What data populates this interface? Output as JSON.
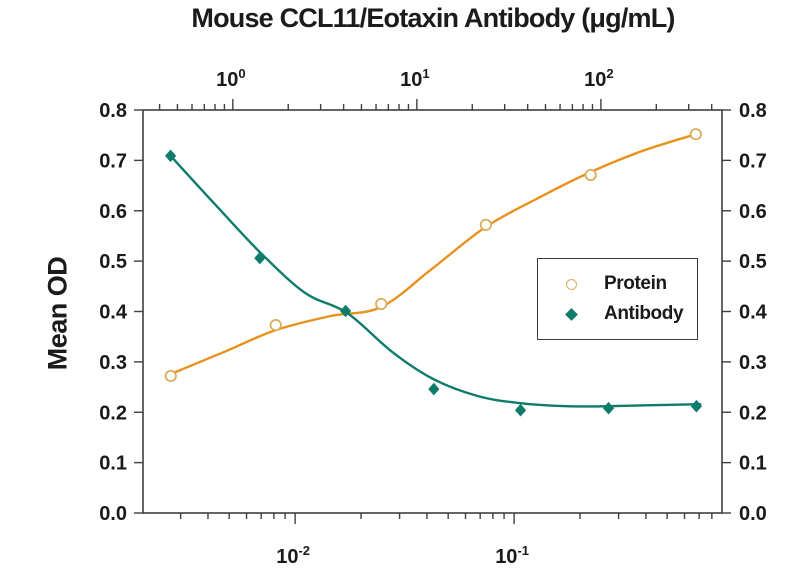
{
  "chart_data": {
    "type": "scatter",
    "title": "Mouse CCL11/Eotaxin Antibody (μg/mL)",
    "grid": false,
    "y_axis": {
      "label": "Mean OD",
      "range": [
        0.0,
        0.8
      ],
      "tick_step": 0.1,
      "tick_labels": [
        "0.0",
        "0.1",
        "0.2",
        "0.3",
        "0.4",
        "0.5",
        "0.6",
        "0.7",
        "0.8"
      ],
      "labels_on_both_sides": true
    },
    "x_axis_top": {
      "scale": "log",
      "range": [
        0.325,
        455
      ],
      "label_base": "10",
      "major_ticks": [
        {
          "value": 1,
          "exponent": "0"
        },
        {
          "value": 10,
          "exponent": "1"
        },
        {
          "value": 100,
          "exponent": "2"
        }
      ]
    },
    "x_axis_bottom": {
      "scale": "log",
      "range": [
        0.00202,
        0.89
      ],
      "label_base": "10",
      "major_ticks": [
        {
          "value": 0.01,
          "exponent": "-2"
        },
        {
          "value": 0.1,
          "exponent": "-1"
        }
      ]
    },
    "series": [
      {
        "name": "Protein",
        "x_axis": "top",
        "marker": "open-circle",
        "marker_color": "#D8AE5A",
        "line_color": "#E8921E",
        "x": [
          0.46,
          1.71,
          6.4,
          23.7,
          88,
          328
        ],
        "y": [
          0.272,
          0.373,
          0.415,
          0.572,
          0.671,
          0.752
        ],
        "curve_x": [
          0.46,
          0.9,
          1.71,
          3.4,
          6.4,
          12.2,
          23.7,
          45.5,
          88,
          169,
          328
        ],
        "curve_y": [
          0.276,
          0.32,
          0.363,
          0.391,
          0.409,
          0.486,
          0.568,
          0.625,
          0.677,
          0.719,
          0.752
        ]
      },
      {
        "name": "Antibody",
        "x_axis": "bottom",
        "marker": "filled-diamond",
        "marker_color": "#0E7C6B",
        "line_color": "#0F7C6B",
        "x": [
          0.0027,
          0.0069,
          0.017,
          0.043,
          0.107,
          0.27,
          0.68
        ],
        "y": [
          0.709,
          0.506,
          0.401,
          0.246,
          0.204,
          0.208,
          0.212
        ],
        "curve_x": [
          0.0027,
          0.0043,
          0.0069,
          0.0111,
          0.0173,
          0.0277,
          0.0427,
          0.0685,
          0.107,
          0.173,
          0.269,
          0.428,
          0.708
        ],
        "curve_y": [
          0.709,
          0.613,
          0.518,
          0.437,
          0.397,
          0.32,
          0.266,
          0.232,
          0.218,
          0.212,
          0.212,
          0.214,
          0.216
        ]
      }
    ],
    "legend": {
      "position": "middle-right",
      "items": [
        {
          "label": "Protein"
        },
        {
          "label": "Antibody"
        }
      ]
    },
    "colors": {
      "axis": "#3f3f3f",
      "text": "#1a1a1a",
      "background": "#ffffff"
    }
  }
}
